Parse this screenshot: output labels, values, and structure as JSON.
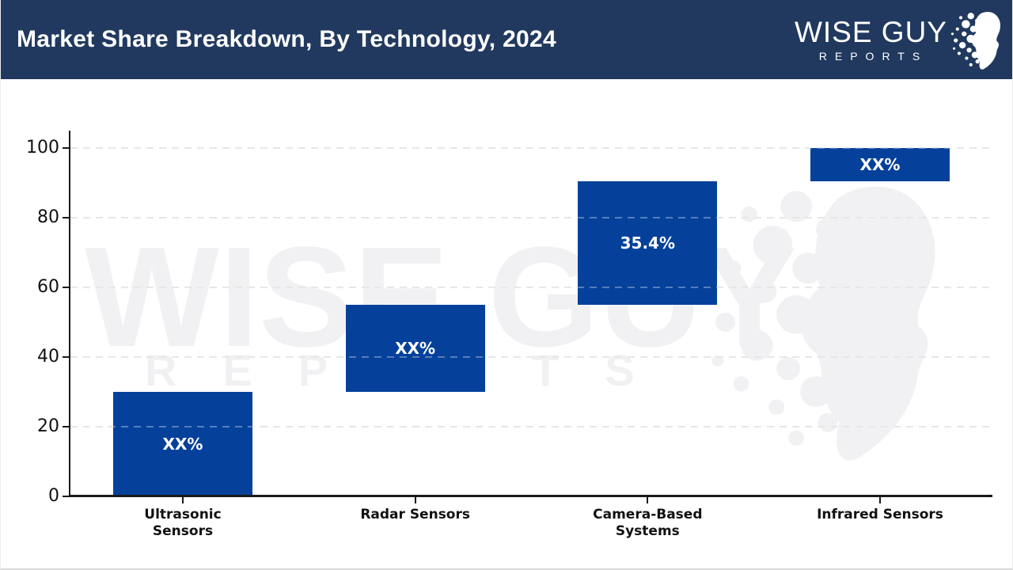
{
  "header": {
    "title": "Market Share Breakdown, By Technology, 2024",
    "logo": {
      "wordmark": "WISE GUY",
      "subtext": "REPORTS"
    }
  },
  "watermark": {
    "wordmark": "WISE GUY",
    "subtext": "REPORTS"
  },
  "chart_data": {
    "type": "bar",
    "subtype": "floating-segment-waterfall",
    "title": "Market Share Breakdown, By Technology, 2024",
    "categories": [
      "Ultrasonic Sensors",
      "Radar Sensors",
      "Camera-Based Systems",
      "Infrared Sensors"
    ],
    "series": [
      {
        "name": "Market share (%)",
        "segments": [
          {
            "category": "Ultrasonic Sensors",
            "start": 0,
            "end": 30,
            "label": "XX%"
          },
          {
            "category": "Radar Sensors",
            "start": 30,
            "end": 55,
            "label": "XX%"
          },
          {
            "category": "Camera-Based Systems",
            "start": 55,
            "end": 90.4,
            "label": "35.4%"
          },
          {
            "category": "Infrared Sensors",
            "start": 90.4,
            "end": 100,
            "label": "XX%"
          }
        ]
      }
    ],
    "yticks": [
      0,
      20,
      40,
      60,
      80,
      100
    ],
    "ylim": [
      0,
      105
    ],
    "xlabel": "",
    "ylabel": "",
    "grid": "dashed-horizontal",
    "legend": "none",
    "bar_color": "#05419b",
    "bar_label_color": "#ffffff"
  },
  "colors": {
    "header_bg": "#21395f",
    "bar": "#05419b",
    "grid": "#dcdcdc",
    "axis": "#1a1a1a",
    "watermark": "#f1f1f3",
    "background": "#ffffff"
  }
}
